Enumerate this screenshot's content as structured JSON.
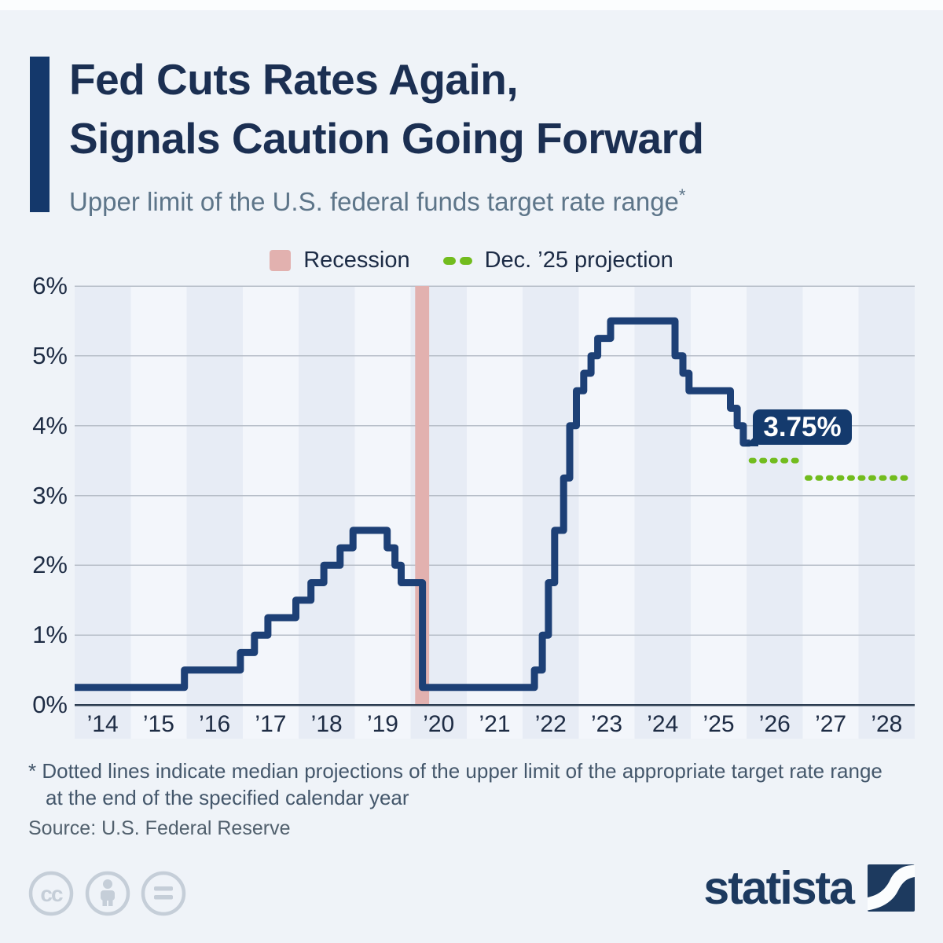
{
  "header": {
    "title_line1": "Fed Cuts Rates Again,",
    "title_line2": "Signals Caution Going Forward",
    "subtitle": "Upper limit of the U.S. federal funds target rate range",
    "subtitle_marker": "*"
  },
  "legend": {
    "recession_label": "Recession",
    "projection_label": "Dec. ’25 projection"
  },
  "chart_data": {
    "type": "line",
    "step": true,
    "title": "Upper limit of the U.S. federal funds target rate range",
    "x_domain": [
      2014,
      2029
    ],
    "y_domain": [
      0,
      6
    ],
    "x_ticks": [
      "’14",
      "’15",
      "’16",
      "’17",
      "’18",
      "’19",
      "’20",
      "’21",
      "’22",
      "’23",
      "’24",
      "’25",
      "’26",
      "’27",
      "’28"
    ],
    "y_ticks": [
      "0%",
      "1%",
      "2%",
      "3%",
      "4%",
      "5%",
      "6%"
    ],
    "series": [
      {
        "name": "Upper limit of federal funds target rate (%)",
        "points": [
          [
            2014.0,
            0.25
          ],
          [
            2015.96,
            0.5
          ],
          [
            2016.96,
            0.75
          ],
          [
            2017.21,
            1.0
          ],
          [
            2017.45,
            1.25
          ],
          [
            2017.95,
            1.5
          ],
          [
            2018.22,
            1.75
          ],
          [
            2018.45,
            2.0
          ],
          [
            2018.74,
            2.25
          ],
          [
            2018.97,
            2.5
          ],
          [
            2019.58,
            2.25
          ],
          [
            2019.72,
            2.0
          ],
          [
            2019.83,
            1.75
          ],
          [
            2020.21,
            0.25
          ],
          [
            2022.21,
            0.5
          ],
          [
            2022.35,
            1.0
          ],
          [
            2022.46,
            1.75
          ],
          [
            2022.57,
            2.5
          ],
          [
            2022.73,
            3.25
          ],
          [
            2022.84,
            4.0
          ],
          [
            2022.96,
            4.5
          ],
          [
            2023.09,
            4.75
          ],
          [
            2023.22,
            5.0
          ],
          [
            2023.34,
            5.25
          ],
          [
            2023.57,
            5.5
          ],
          [
            2024.72,
            5.0
          ],
          [
            2024.86,
            4.75
          ],
          [
            2024.97,
            4.5
          ],
          [
            2025.71,
            4.25
          ],
          [
            2025.83,
            4.0
          ],
          [
            2025.94,
            3.75
          ]
        ],
        "end_x": 2026.06
      }
    ],
    "end_label": "3.75%",
    "recession_bands": [
      {
        "from": 2020.08,
        "to": 2020.33
      }
    ],
    "projections": [
      {
        "from": 2026.0,
        "to": 2027.0,
        "value": 3.5
      },
      {
        "from": 2027.0,
        "to": 2029.0,
        "value": 3.25
      }
    ],
    "legend_position": "top",
    "grid": true,
    "colors": {
      "line": "#1d4076",
      "projection": "#72bc1e",
      "recession": "#e2b1af",
      "band_dark": "#e7ecf5",
      "band_light": "#f3f6fb",
      "grid": "#b7bec8",
      "axis": "#2b3c50",
      "label_box": "#143a6d"
    }
  },
  "footnote": {
    "line1": "* Dotted lines indicate median projections of the upper limit of the appropriate target rate range",
    "line2": "at the end of the specified calendar year"
  },
  "source": {
    "text": "Source: U.S. Federal Reserve"
  },
  "branding": {
    "logo_text": "statista"
  }
}
